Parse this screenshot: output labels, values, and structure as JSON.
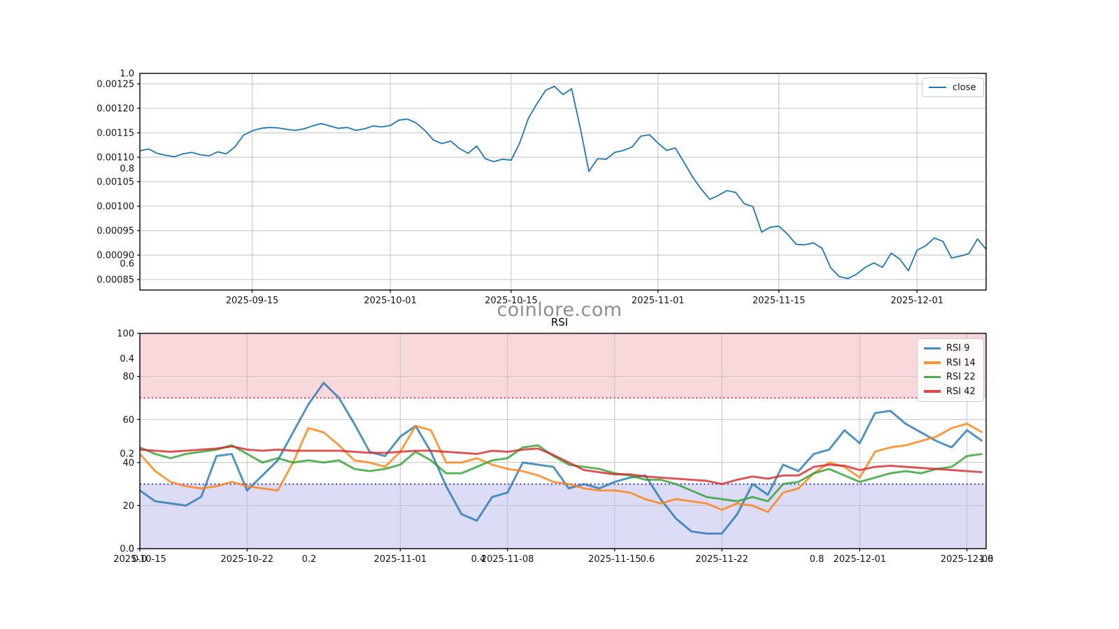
{
  "watermark": "coinlore.com",
  "rsi_section_title": "RSI",
  "colors": {
    "close_line": "#1f77b4",
    "rsi9": "#1f77b4",
    "rsi14": "#ff7f0e",
    "rsi22": "#2ca02c",
    "rsi42": "#d62728",
    "grid": "#c2c2c2",
    "spine": "#000000",
    "overbought_band": "#f9d8dc",
    "oversold_band": "#dcdcf6",
    "overbought_line": "#e02030",
    "oversold_line": "#2020cc",
    "watermark_gray": "#8e8e8e"
  },
  "overlay_axis": {
    "x_labels": [
      "0.0",
      "0.2",
      "0.4",
      "0.6",
      "0.8",
      "1.0"
    ],
    "y_labels": [
      "1.0",
      "0.8",
      "0.6",
      "0.4",
      "0.2",
      "0.0"
    ]
  },
  "chart_data": [
    {
      "type": "line",
      "title": "",
      "legend": [
        "close"
      ],
      "legend_position": "upper right",
      "grid": true,
      "x_start": "2025-09-02",
      "x_step_days": 1,
      "x_tick_labels": [
        "2025-09-15",
        "2025-10-01",
        "2025-10-15",
        "2025-11-01",
        "2025-11-15",
        "2025-12-01"
      ],
      "y_tick_labels": [
        "0.00125",
        "0.00120",
        "0.00115",
        "0.00110",
        "0.00105",
        "0.00100",
        "0.00095",
        "0.00090",
        "0.00085"
      ],
      "ylim": [
        0.0008286,
        0.0012714
      ],
      "series": [
        {
          "name": "close",
          "color": "#1f77b4",
          "values": [
            0.001113,
            0.001117,
            0.001108,
            0.001104,
            0.001101,
            0.001107,
            0.00111,
            0.001105,
            0.001103,
            0.001111,
            0.001107,
            0.001121,
            0.001145,
            0.001154,
            0.001159,
            0.001161,
            0.00116,
            0.001157,
            0.001155,
            0.001158,
            0.001164,
            0.001169,
            0.001164,
            0.001159,
            0.001161,
            0.001155,
            0.001158,
            0.001164,
            0.001162,
            0.001165,
            0.001176,
            0.001178,
            0.00117,
            0.001155,
            0.001135,
            0.001128,
            0.001133,
            0.001118,
            0.001108,
            0.001123,
            0.001097,
            0.001091,
            0.001096,
            0.001094,
            0.00113,
            0.00118,
            0.00121,
            0.001237,
            0.001245,
            0.001228,
            0.00124,
            0.00116,
            0.001071,
            0.001097,
            0.001096,
            0.00111,
            0.001114,
            0.001121,
            0.001143,
            0.001146,
            0.001129,
            0.001114,
            0.001119,
            0.00109,
            0.00106,
            0.001035,
            0.001014,
            0.001022,
            0.001032,
            0.001028,
            0.001005,
            0.000999,
            0.000947,
            0.000957,
            0.000959,
            0.000943,
            0.000922,
            0.000921,
            0.000925,
            0.000914,
            0.000874,
            0.000856,
            0.000852,
            0.000861,
            0.000875,
            0.000884,
            0.000875,
            0.000904,
            0.000892,
            0.000868,
            0.00091,
            0.000919,
            0.000935,
            0.000928,
            0.000894,
            0.000898,
            0.000903,
            0.000933,
            0.000912
          ]
        }
      ]
    },
    {
      "type": "line",
      "title": "RSI",
      "legend": [
        "RSI 9",
        "RSI 14",
        "RSI 22",
        "RSI 42"
      ],
      "legend_position": "upper right",
      "grid": true,
      "x_start": "2025-10-15",
      "x_step_days": 1,
      "x_tick_labels": [
        "2025-10-15",
        "2025-10-22",
        "2025-11-01",
        "2025-11-08",
        "2025-11-15",
        "2025-11-22",
        "2025-12-01",
        "2025-12-08"
      ],
      "y_tick_labels": [
        "100",
        "80",
        "60",
        "40",
        "20",
        "0"
      ],
      "ylim": [
        0,
        100
      ],
      "overbought_level": 70,
      "oversold_level": 30,
      "series": [
        {
          "name": "RSI 9",
          "color": "#1f77b4",
          "values": [
            27,
            22,
            21,
            20,
            24,
            43,
            44,
            27,
            34,
            41,
            54,
            67,
            77,
            70,
            58,
            45,
            43,
            52,
            57,
            45,
            29,
            16,
            13,
            24,
            26,
            40,
            39,
            38,
            28,
            30,
            28,
            31,
            33,
            34,
            23,
            14,
            8,
            7,
            7,
            16,
            30,
            25,
            39,
            36,
            44,
            46,
            55,
            49,
            63,
            64,
            58,
            54,
            50,
            47,
            55,
            50
          ]
        },
        {
          "name": "RSI 14",
          "color": "#ff7f0e",
          "values": [
            44,
            36,
            31,
            29,
            28,
            29,
            31,
            29,
            28,
            27,
            40,
            56,
            54,
            48,
            41,
            40,
            38,
            45,
            57,
            55,
            40,
            40,
            42,
            39,
            37,
            36,
            34,
            31,
            30,
            28,
            27,
            27,
            26,
            23,
            21,
            23,
            22,
            21,
            18,
            21,
            20,
            17,
            26,
            28,
            35,
            40,
            38,
            33,
            45,
            47,
            48,
            50,
            52,
            56,
            58,
            54
          ]
        },
        {
          "name": "RSI 22",
          "color": "#2ca02c",
          "values": [
            47,
            44,
            42,
            44,
            45,
            46,
            48,
            44,
            40,
            42,
            40,
            41,
            40,
            41,
            37,
            36,
            37,
            39,
            45,
            41,
            35,
            35,
            38,
            41,
            42,
            47,
            48,
            43,
            39,
            38,
            37,
            35,
            34,
            32,
            32,
            30,
            27,
            24,
            23,
            22,
            24,
            22,
            30,
            31,
            35,
            37,
            34,
            31,
            33,
            35,
            36,
            35,
            37,
            38,
            43,
            44
          ]
        },
        {
          "name": "RSI 42",
          "color": "#d62728",
          "values": [
            46,
            45.5,
            45,
            45.5,
            46,
            46.5,
            47.5,
            46,
            45.5,
            46,
            45.5,
            45.5,
            45.5,
            45.5,
            45,
            44.5,
            44.5,
            45,
            45.5,
            45.5,
            45,
            44.5,
            44,
            45.5,
            45,
            46,
            46.5,
            43.5,
            40,
            36.5,
            35.5,
            34.5,
            34.5,
            33.5,
            33,
            32.5,
            32,
            31.5,
            30,
            32,
            33.5,
            32.5,
            34,
            34,
            38,
            39,
            38.5,
            36.5,
            38,
            38.5,
            38,
            37.5,
            37,
            36.5,
            36,
            35.5
          ]
        }
      ]
    }
  ]
}
